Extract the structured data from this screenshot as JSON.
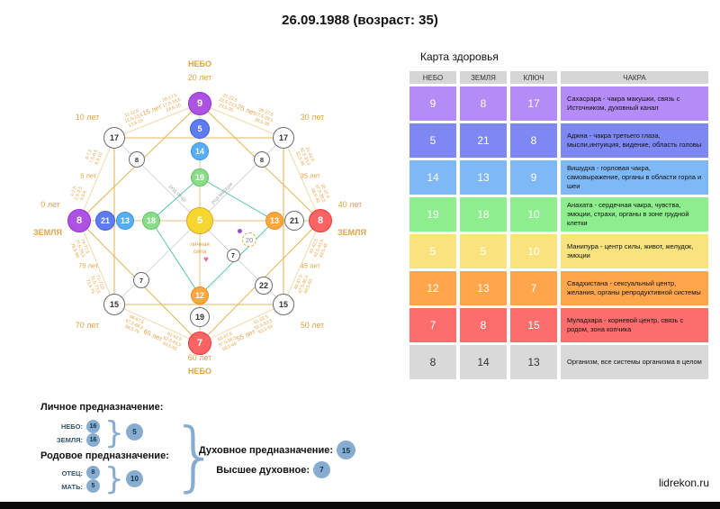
{
  "header": {
    "title": "26.09.1988 (возраст: 35)"
  },
  "diagram": {
    "heart": "♥",
    "labels": [
      {
        "id": "sky-top",
        "text": "НЕБО"
      },
      {
        "id": "age-20",
        "text": "20 лет"
      },
      {
        "id": "age-10",
        "text": "10 лет"
      },
      {
        "id": "age-30",
        "text": "30 лет"
      },
      {
        "id": "age-0",
        "text": "0 лет"
      },
      {
        "id": "earth-left",
        "text": "ЗЕМЛЯ"
      },
      {
        "id": "age-40",
        "text": "40 лет"
      },
      {
        "id": "earth-right",
        "text": "ЗЕМЛЯ"
      },
      {
        "id": "age-70",
        "text": "70 лет"
      },
      {
        "id": "age-50",
        "text": "50 лет"
      },
      {
        "id": "age-60",
        "text": "60 лет"
      },
      {
        "id": "sky-bottom",
        "text": "НЕБО"
      },
      {
        "id": "line-father",
        "text": "род отца"
      },
      {
        "id": "line-mother",
        "text": "род матери"
      },
      {
        "id": "personal-power",
        "text": "личная сила"
      }
    ],
    "circles": [
      {
        "id": "t0",
        "value": "9",
        "color": "purple"
      },
      {
        "id": "t1",
        "value": "5",
        "color": "blue"
      },
      {
        "id": "t2",
        "value": "14",
        "color": "sky"
      },
      {
        "id": "t3",
        "value": "19",
        "color": "green"
      },
      {
        "id": "l0",
        "value": "8",
        "color": "purple"
      },
      {
        "id": "l1",
        "value": "21",
        "color": "blue"
      },
      {
        "id": "l2",
        "value": "13",
        "color": "sky"
      },
      {
        "id": "l3",
        "value": "18",
        "color": "green"
      },
      {
        "id": "c",
        "value": "5",
        "color": "yellow"
      },
      {
        "id": "r0",
        "value": "13",
        "color": "orange"
      },
      {
        "id": "r1",
        "value": "21",
        "color": "white"
      },
      {
        "id": "r2",
        "value": "8",
        "color": "red"
      },
      {
        "id": "b0",
        "value": "12",
        "color": "orange"
      },
      {
        "id": "b1",
        "value": "19",
        "color": "white"
      },
      {
        "id": "b2",
        "value": "7",
        "color": "red"
      },
      {
        "id": "nw0",
        "value": "17",
        "color": "white"
      },
      {
        "id": "nw1",
        "value": "8",
        "color": "white"
      },
      {
        "id": "ne0",
        "value": "17",
        "color": "white"
      },
      {
        "id": "ne1",
        "value": "8",
        "color": "white"
      },
      {
        "id": "sw0",
        "value": "15",
        "color": "white"
      },
      {
        "id": "sw1",
        "value": "7",
        "color": "white"
      },
      {
        "id": "se0",
        "value": "15",
        "color": "white"
      },
      {
        "id": "se1",
        "value": "22",
        "color": "white"
      },
      {
        "id": "k7",
        "value": "7",
        "color": "white"
      },
      {
        "id": "k20",
        "value": "20",
        "color": "dashed"
      }
    ],
    "edges": [
      {
        "mark": "5 лет",
        "before": [
          "1-2,5",
          "2,5-3,5",
          "3,5-5"
        ],
        "after": [
          "6-7,5",
          "7,5-8,5",
          "8,5-10"
        ]
      },
      {
        "mark": "15 лет",
        "before": [
          "11-12,5",
          "12,5-13,5",
          "13,5-15"
        ],
        "after": [
          "16-17,5",
          "17,5-18,5",
          "18,5-20"
        ]
      },
      {
        "mark": "25 лет",
        "before": [
          "21-22,5",
          "22,5-23,5",
          "23,5-25"
        ],
        "after": [
          "26-27,5",
          "27,5-28,5",
          "28,5-30"
        ]
      },
      {
        "mark": "35 лет",
        "before": [
          "31-32,5",
          "32,5-33,5",
          "33,5-35"
        ],
        "after": [
          "36-37,5",
          "37,5-38,5",
          "38,5-40"
        ]
      },
      {
        "mark": "45 лет",
        "before": [
          "41-42,5",
          "42,5-43,5",
          "43,5-45"
        ],
        "after": [
          "46-47,5",
          "47,5-48,5",
          "48,5-50"
        ]
      },
      {
        "mark": "55 лет",
        "before": [
          "51-52,5",
          "52,5-53,5",
          "53,5-55"
        ],
        "after": [
          "56-57,5",
          "57,5-58,5",
          "58,5-60"
        ]
      },
      {
        "mark": "65 лет",
        "before": [
          "61-62,5",
          "62,5-63,5",
          "63,5-65"
        ],
        "after": [
          "66-67,5",
          "67,5-68,5",
          "68,5-70"
        ]
      },
      {
        "mark": "75 лет",
        "before": [
          "71-72,5",
          "72,5-73,5",
          "73,5-75"
        ],
        "after": [
          "76-77,5",
          "77,5-78,5",
          "78,5-80"
        ]
      }
    ]
  },
  "health": {
    "title": "Карта здоровья",
    "headers": [
      "НЕБО",
      "ЗЕМЛЯ",
      "КЛЮЧ",
      "ЧАКРА"
    ],
    "rows": [
      {
        "nebo": "9",
        "zemlya": "8",
        "kluch": "17",
        "color": "#B58BF5",
        "chakra": "Сахасрара - чакра макушки, связь с Источником, духовный канал"
      },
      {
        "nebo": "5",
        "zemlya": "21",
        "kluch": "8",
        "color": "#7E88F2",
        "chakra": "Аджна - чакра третьего глаза, мысли,интуиция, видение, область головы"
      },
      {
        "nebo": "14",
        "zemlya": "13",
        "kluch": "9",
        "color": "#7FB8F7",
        "chakra": "Вишудха - горловая чакра, самовыражение, органы в области горла и шеи"
      },
      {
        "nebo": "19",
        "zemlya": "18",
        "kluch": "10",
        "color": "#8CEE8C",
        "chakra": "Анахата - сердечная чакра, чувства, эмоции, страхи, органы в зоне грудной клетки"
      },
      {
        "nebo": "5",
        "zemlya": "5",
        "kluch": "10",
        "color": "#F8E37E",
        "chakra": "Манипура - центр силы, живот, желудок, эмоции"
      },
      {
        "nebo": "12",
        "zemlya": "13",
        "kluch": "7",
        "color": "#FFA64D",
        "chakra": "Свадхистана - сексуальный центр, желания, органы репродуктивной системы"
      },
      {
        "nebo": "7",
        "zemlya": "8",
        "kluch": "15",
        "color": "#FC6D6D",
        "chakra": "Муладхара - корневой центр, связь с родом, зона копчика"
      },
      {
        "nebo": "8",
        "zemlya": "14",
        "kluch": "13",
        "color": "#D9D9D9",
        "dark_text": true,
        "chakra": "Организм, все системы организма в целом"
      }
    ]
  },
  "legend": {
    "personal_title": "Личное предназначение:",
    "sky_label": "НЕБО:",
    "sky_value": "16",
    "earth_label": "ЗЕМЛЯ:",
    "earth_value": "16",
    "personal_result": "5",
    "family_title": "Родовое предназначение:",
    "father_label": "ОТЕЦ:",
    "father_value": "8",
    "mother_label": "МАТЬ:",
    "mother_value": "5",
    "family_result": "10",
    "spiritual_title": "Духовное предназначение:",
    "spiritual_value": "15",
    "higher_title": "Высшее духовное:",
    "higher_value": "7",
    "brace": "}"
  },
  "footer": {
    "site": "lidrekon.ru"
  }
}
